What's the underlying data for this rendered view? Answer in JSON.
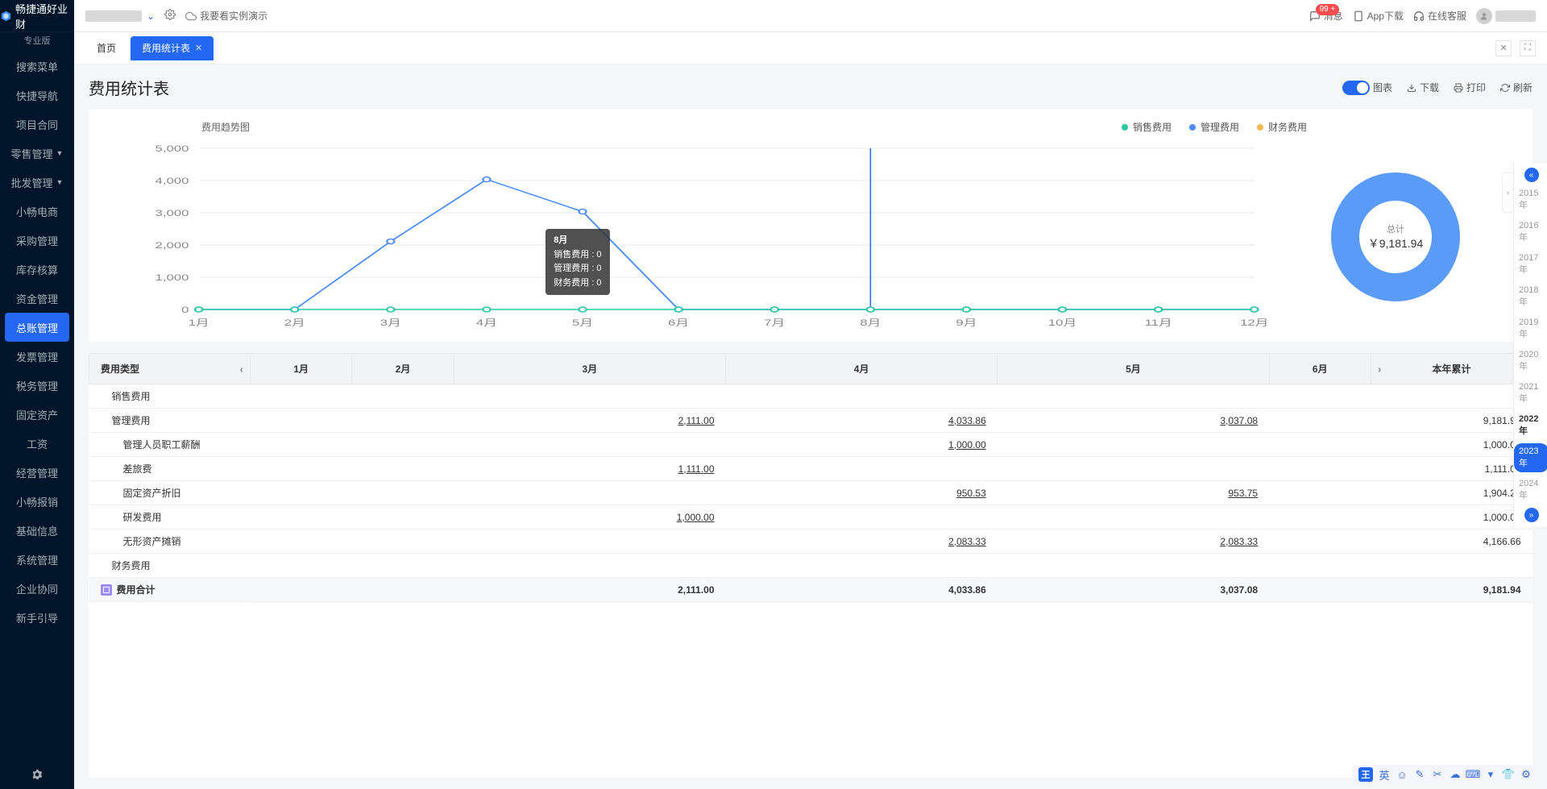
{
  "brand": {
    "name": "畅捷通好业财",
    "edition": "专业版"
  },
  "topbar": {
    "demo_label": "我要看实例演示",
    "msg_label": "消息",
    "msg_badge": "99 +",
    "app_label": "App下载",
    "support_label": "在线客服"
  },
  "sidebar": {
    "items": [
      {
        "label": "搜索菜单",
        "caret": false
      },
      {
        "label": "快捷导航",
        "caret": false
      },
      {
        "label": "项目合同",
        "caret": false
      },
      {
        "label": "零售管理",
        "caret": true
      },
      {
        "label": "批发管理",
        "caret": true
      },
      {
        "label": "小畅电商",
        "caret": false
      },
      {
        "label": "采购管理",
        "caret": false
      },
      {
        "label": "库存核算",
        "caret": false
      },
      {
        "label": "资金管理",
        "caret": false
      },
      {
        "label": "总账管理",
        "caret": false,
        "active": true
      },
      {
        "label": "发票管理",
        "caret": false
      },
      {
        "label": "税务管理",
        "caret": false
      },
      {
        "label": "固定资产",
        "caret": false
      },
      {
        "label": "工资",
        "caret": false
      },
      {
        "label": "经营管理",
        "caret": false
      },
      {
        "label": "小畅报销",
        "caret": false
      },
      {
        "label": "基础信息",
        "caret": false
      },
      {
        "label": "系统管理",
        "caret": false
      },
      {
        "label": "企业协同",
        "caret": false
      },
      {
        "label": "新手引导",
        "caret": false
      }
    ]
  },
  "tabs": {
    "home": "首页",
    "active": "费用统计表"
  },
  "page": {
    "title": "费用统计表",
    "toggle_label": "图表",
    "download": "下载",
    "print": "打印",
    "refresh": "刷新"
  },
  "chart": {
    "title": "费用趋势图",
    "legend": [
      {
        "label": "销售费用",
        "color": "#2ec7a6"
      },
      {
        "label": "管理费用",
        "color": "#4f8ff7"
      },
      {
        "label": "财务费用",
        "color": "#f7b84f"
      }
    ],
    "y_ticks": [
      0,
      1000,
      2000,
      3000,
      4000,
      5000
    ],
    "x_labels": [
      "1月",
      "2月",
      "3月",
      "4月",
      "5月",
      "6月",
      "7月",
      "8月",
      "9月",
      "10月",
      "11月",
      "12月"
    ],
    "series_mgmt": [
      0,
      0,
      2111,
      4034,
      3037,
      0,
      0,
      0,
      0,
      0,
      0,
      0
    ],
    "series_sales": [
      0,
      0,
      0,
      0,
      0,
      0,
      0,
      0,
      0,
      0,
      0,
      0
    ],
    "hover_month": "8月",
    "hover_lines": [
      "销售费用 : 0",
      "管理费用 : 0",
      "财务费用 : 0"
    ],
    "grid_color": "#eeeeee",
    "line_colors": {
      "sales": "#2ec7a6",
      "mgmt": "#4f8ff7"
    }
  },
  "donut": {
    "center_label": "总计",
    "center_value": "￥9,181.94",
    "color": "#5b9bf8",
    "empty_color": "#eef2f7"
  },
  "years": {
    "list": [
      "2015年",
      "2016年",
      "2017年",
      "2018年",
      "2019年",
      "2020年",
      "2021年",
      "2022年",
      "2023年",
      "2024年"
    ],
    "bold": "2022年",
    "active": "2023年"
  },
  "table": {
    "header_type": "费用类型",
    "months": [
      "1月",
      "2月",
      "3月",
      "4月",
      "5月",
      "6月"
    ],
    "header_total": "本年累计",
    "rows": [
      {
        "label": "销售费用",
        "indent": 1,
        "vals": [
          "",
          "",
          "",
          "",
          "",
          ""
        ],
        "total": "",
        "u": false
      },
      {
        "label": "管理费用",
        "indent": 1,
        "vals": [
          "",
          "",
          "2,111.00",
          "4,033.86",
          "3,037.08",
          ""
        ],
        "total": "9,181.94",
        "u": true
      },
      {
        "label": "管理人员职工薪酬",
        "indent": 2,
        "vals": [
          "",
          "",
          "",
          "1,000.00",
          "",
          ""
        ],
        "total": "1,000.00",
        "u": true
      },
      {
        "label": "差旅费",
        "indent": 2,
        "vals": [
          "",
          "",
          "1,111.00",
          "",
          "",
          ""
        ],
        "total": "1,111.00",
        "u": true
      },
      {
        "label": "固定资产折旧",
        "indent": 2,
        "vals": [
          "",
          "",
          "",
          "950.53",
          "953.75",
          ""
        ],
        "total": "1,904.28",
        "u": true
      },
      {
        "label": "研发费用",
        "indent": 2,
        "vals": [
          "",
          "",
          "1,000.00",
          "",
          "",
          ""
        ],
        "total": "1,000.00",
        "u": true
      },
      {
        "label": "无形资产摊销",
        "indent": 2,
        "vals": [
          "",
          "",
          "",
          "2,083.33",
          "2,083.33",
          ""
        ],
        "total": "4,166.66",
        "u": true
      },
      {
        "label": "财务费用",
        "indent": 1,
        "vals": [
          "",
          "",
          "",
          "",
          "",
          ""
        ],
        "total": "",
        "u": false
      }
    ],
    "total_row": {
      "label": "费用合计",
      "vals": [
        "",
        "",
        "2,111.00",
        "4,033.86",
        "3,037.08",
        ""
      ],
      "total": "9,181.94"
    }
  },
  "tray": {
    "ime": "王",
    "lang": "英"
  }
}
